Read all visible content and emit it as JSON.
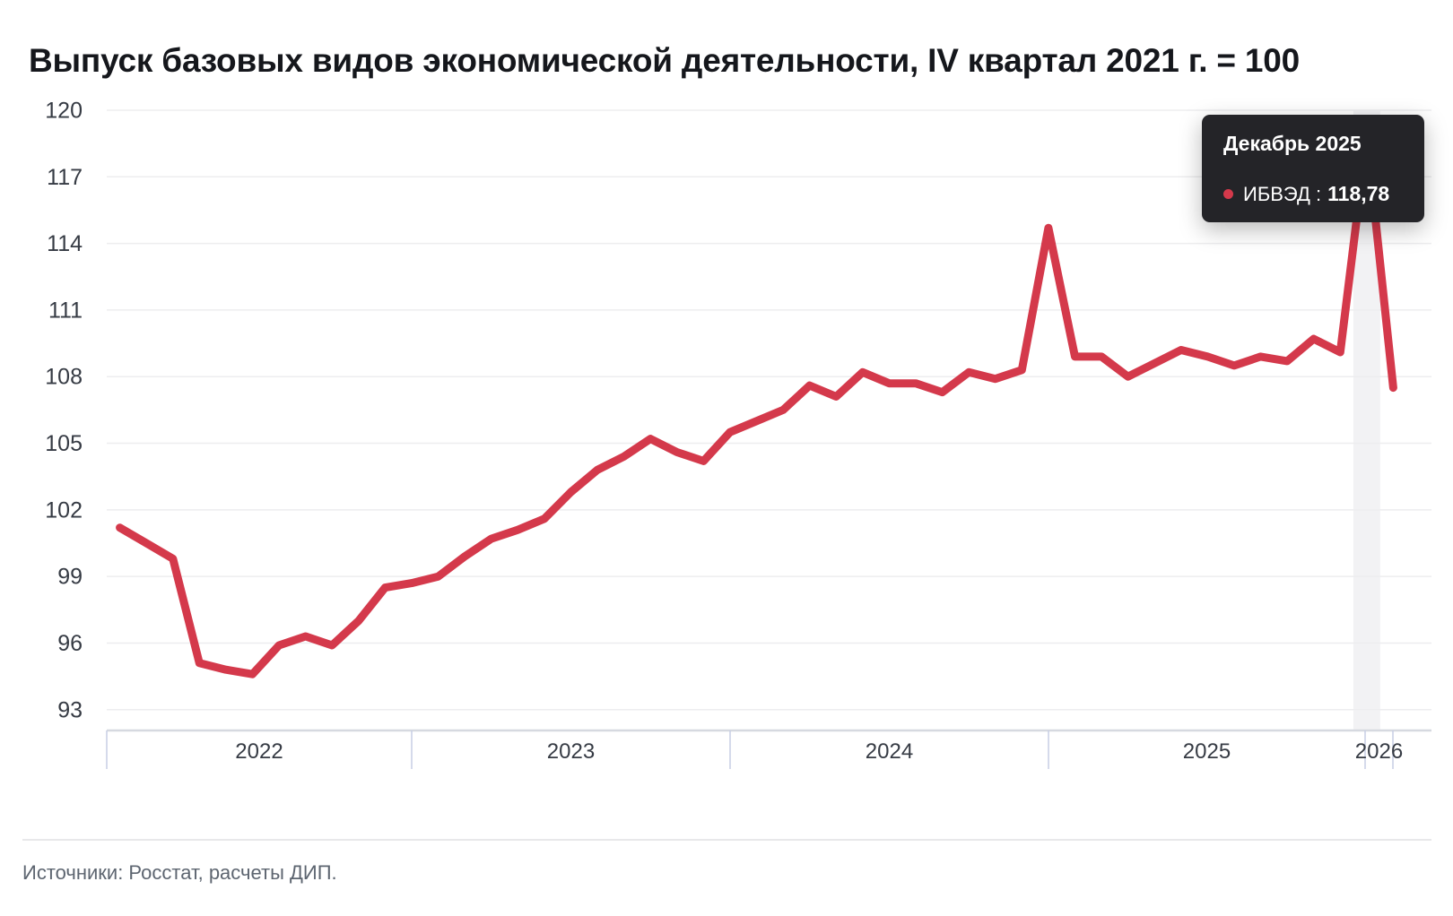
{
  "title": "Выпуск базовых видов экономической деятельности, IV квартал 2021 г. = 100",
  "footer": {
    "source": "Источники: Росстат, расчеты ДИП."
  },
  "tooltip": {
    "title": "Декабрь 2025",
    "series_label": "ИБВЭД :",
    "value": "118,78",
    "bg_color": "#242428",
    "text_color": "#ffffff"
  },
  "colors": {
    "line": "#d4394b",
    "marker_dot": "#d4394b",
    "grid": "#ededef",
    "axis_line": "#d6d9e0",
    "tick": "#c7cee4",
    "axis_label": "#363b44",
    "highlight_band": "#f2f2f4",
    "title_text": "#15171c"
  },
  "chart_data": {
    "type": "line",
    "title": "Выпуск базовых видов экономической деятельности, IV квартал 2021 г. = 100",
    "series_name": "ИБВЭД",
    "legend_position": "none",
    "grid": true,
    "ylim": [
      93,
      120
    ],
    "yticks": [
      120,
      117,
      114,
      111,
      108,
      105,
      102,
      99,
      96,
      93
    ],
    "year_labels": [
      "2022",
      "2023",
      "2024",
      "2025",
      "2026"
    ],
    "highlight_x": "2025-12",
    "highlight_value": 118.78,
    "x": [
      "2022-01",
      "2022-02",
      "2022-03",
      "2022-04",
      "2022-05",
      "2022-06",
      "2022-07",
      "2022-08",
      "2022-09",
      "2022-10",
      "2022-11",
      "2022-12",
      "2023-01",
      "2023-02",
      "2023-03",
      "2023-04",
      "2023-05",
      "2023-06",
      "2023-07",
      "2023-08",
      "2023-09",
      "2023-10",
      "2023-11",
      "2023-12",
      "2024-01",
      "2024-02",
      "2024-03",
      "2024-04",
      "2024-05",
      "2024-06",
      "2024-07",
      "2024-08",
      "2024-09",
      "2024-10",
      "2024-11",
      "2024-12",
      "2025-01",
      "2025-02",
      "2025-03",
      "2025-04",
      "2025-05",
      "2025-06",
      "2025-07",
      "2025-08",
      "2025-09",
      "2025-10",
      "2025-11",
      "2025-12",
      "2026-01"
    ],
    "values": [
      101.2,
      100.5,
      99.8,
      95.1,
      94.8,
      94.6,
      95.9,
      96.3,
      95.9,
      97.0,
      98.5,
      98.7,
      99.0,
      99.9,
      100.7,
      101.1,
      101.6,
      102.8,
      103.8,
      104.4,
      105.2,
      104.6,
      104.2,
      105.5,
      106.0,
      106.5,
      107.6,
      107.1,
      108.2,
      107.7,
      107.7,
      107.3,
      108.2,
      107.9,
      108.3,
      114.7,
      108.9,
      108.9,
      108.0,
      108.6,
      109.2,
      108.9,
      108.5,
      108.9,
      108.7,
      109.7,
      109.1,
      118.78,
      107.5
    ]
  }
}
